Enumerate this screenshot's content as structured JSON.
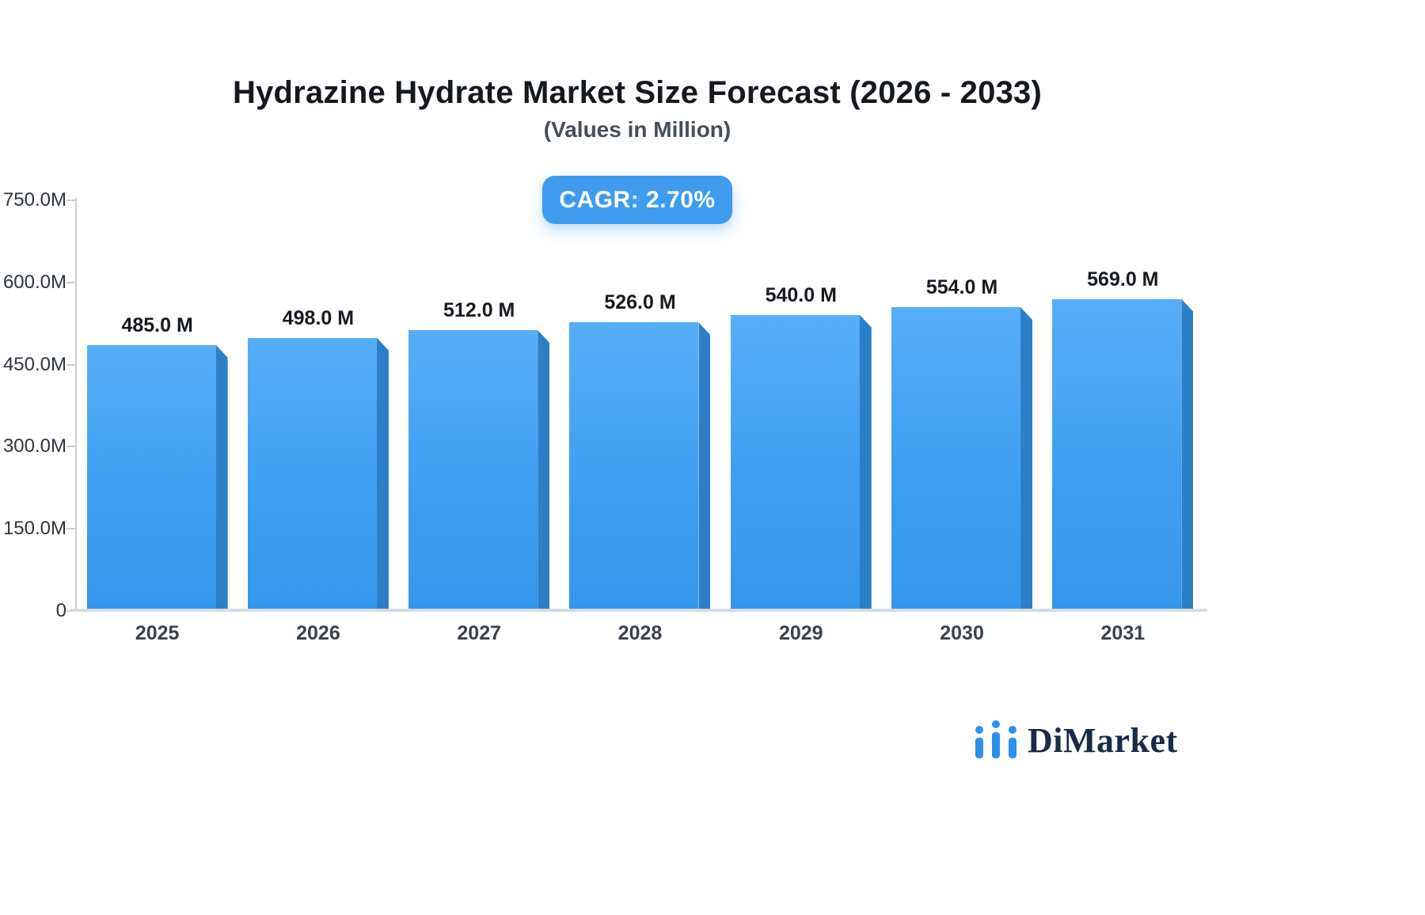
{
  "title": "Hydrazine Hydrate Market Size Forecast (2026 - 2033)",
  "subtitle": "(Values in Million)",
  "badge": {
    "label": "CAGR: 2.70%",
    "bg": "#3e9bf0",
    "text_color": "#ffffff"
  },
  "chart_data": {
    "type": "bar",
    "categories": [
      "2025",
      "2026",
      "2027",
      "2028",
      "2029",
      "2030",
      "2031"
    ],
    "values": [
      485,
      498,
      512,
      526,
      540,
      554,
      569
    ],
    "value_labels": [
      "485.0 M",
      "498.0 M",
      "512.0 M",
      "526.0 M",
      "540.0 M",
      "554.0 M",
      "569.0 M"
    ],
    "title": "Hydrazine Hydrate Market Size Forecast (2026 - 2033)",
    "xlabel": "",
    "ylabel": "",
    "ylim": [
      0,
      750
    ],
    "y_ticks": [
      "750.0M",
      "600.0M",
      "450.0M",
      "300.0M",
      "150.0M",
      "0"
    ],
    "y_tick_values": [
      750,
      600,
      450,
      300,
      150,
      0
    ],
    "grid": false,
    "legend": false,
    "bar_color": "#3f9ff2",
    "bar_side_color": "#2c7fc6"
  },
  "logo": {
    "text": "DiMarket",
    "icon": "bar-chart-icon",
    "icon_color": "#2f8fe8",
    "text_color": "#1a2b49"
  }
}
